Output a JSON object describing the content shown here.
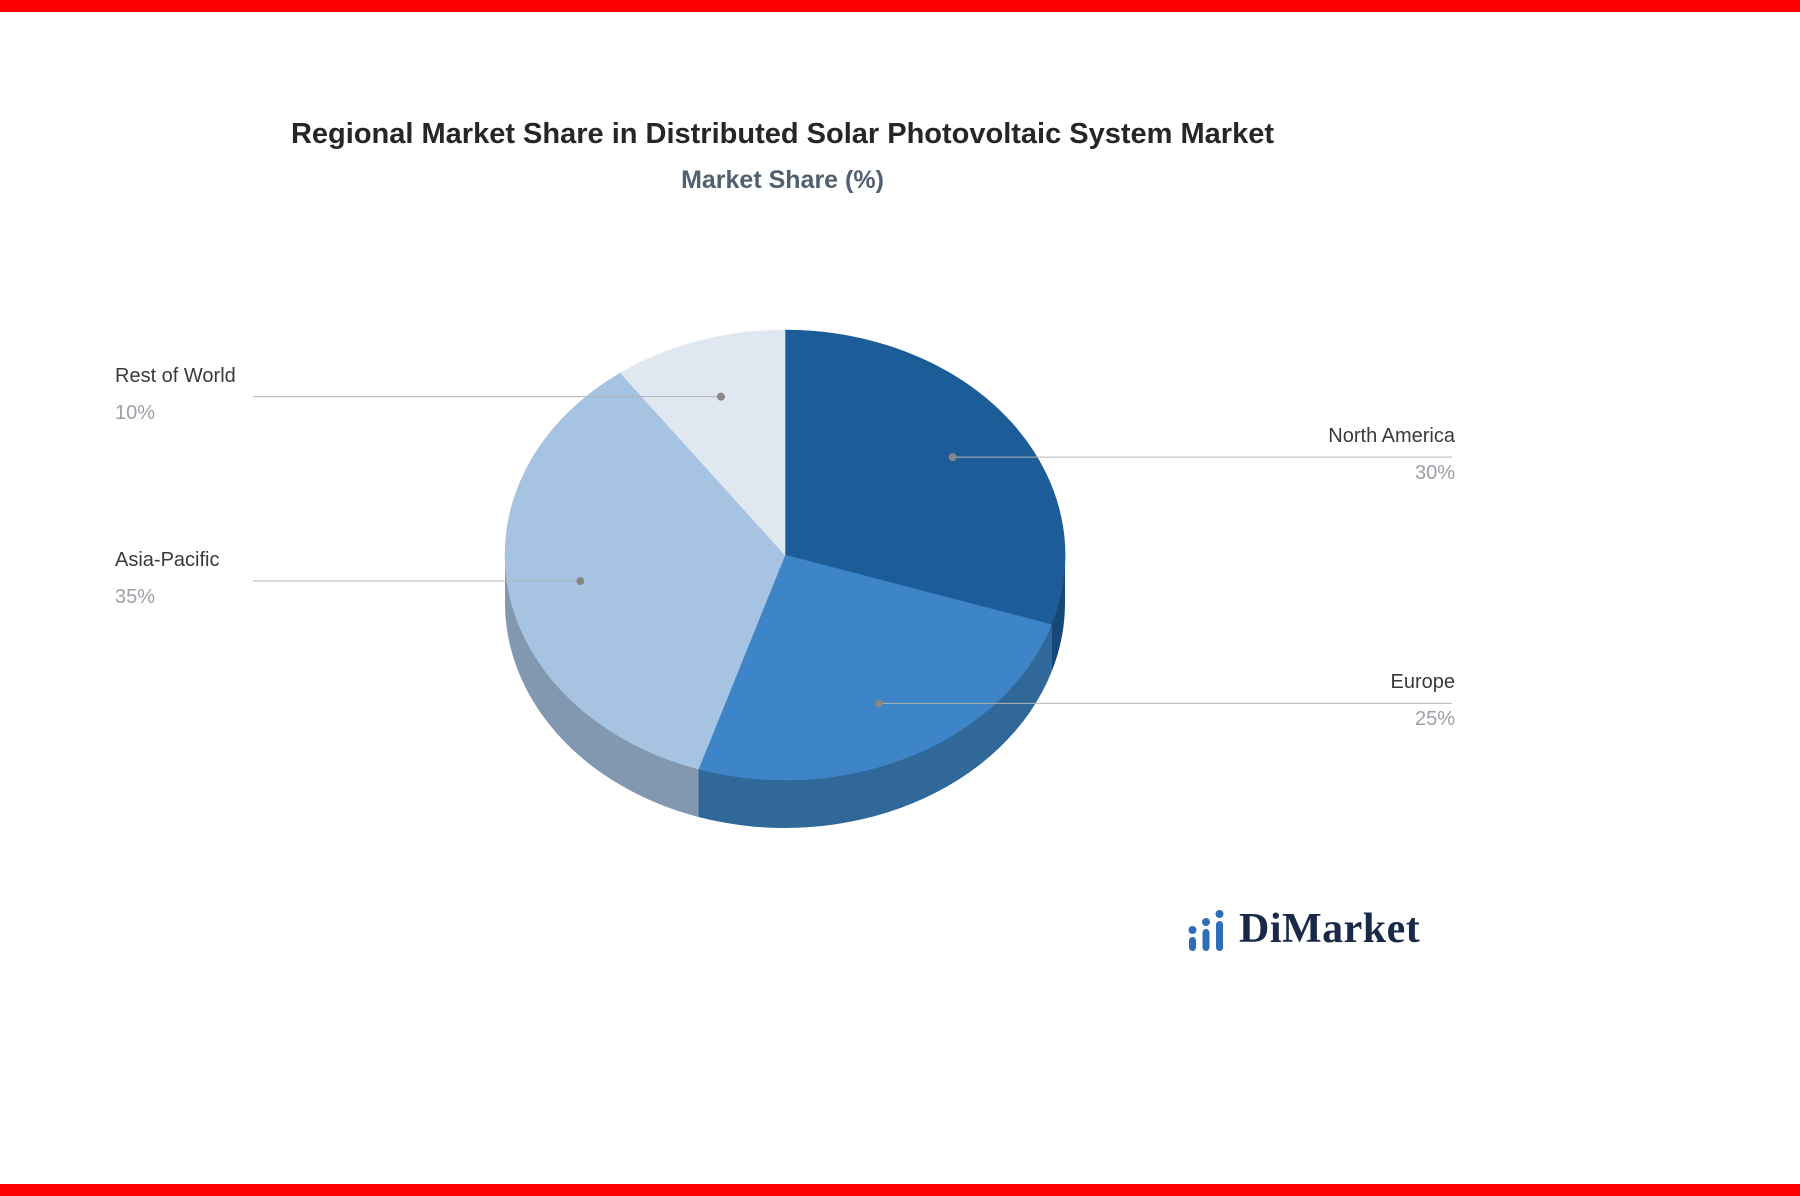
{
  "page": {
    "background": "#ffffff",
    "frame_color": "#ff0000"
  },
  "header": {
    "title": "Regional Market Share in Distributed Solar Photovoltaic System Market",
    "subtitle": "Market Share (%)",
    "title_color": "#262626",
    "subtitle_color": "#51606e"
  },
  "chart_data": {
    "type": "pie",
    "style": "3d",
    "title": "Regional Market Share in Distributed Solar Photovoltaic System Market",
    "subtitle": "Market Share (%)",
    "unit": "%",
    "direction": "clockwise",
    "start_angle_deg": 0,
    "legend": "none",
    "labels": "outside-with-leader-lines",
    "series": [
      {
        "name": "North America",
        "value": 30,
        "label": "30%",
        "color": "#1b5c99"
      },
      {
        "name": "Europe",
        "value": 25,
        "label": "25%",
        "color": "#3d85c6"
      },
      {
        "name": "Asia-Pacific",
        "value": 35,
        "label": "35%",
        "color": "#a6c3e1"
      },
      {
        "name": "Rest of World",
        "value": 10,
        "label": "10%",
        "color": "#dfe7f1"
      }
    ],
    "label_name_color": "#3a3a3a",
    "label_value_color": "#9aa0a6",
    "leader_line_color": "#b4b4b4",
    "leader_dot_color": "#878787"
  },
  "branding": {
    "logo_text": "DiMarket",
    "logo_icon": "bar-chart-icon",
    "icon_color": "#2e6db8",
    "text_color": "#182a47"
  }
}
